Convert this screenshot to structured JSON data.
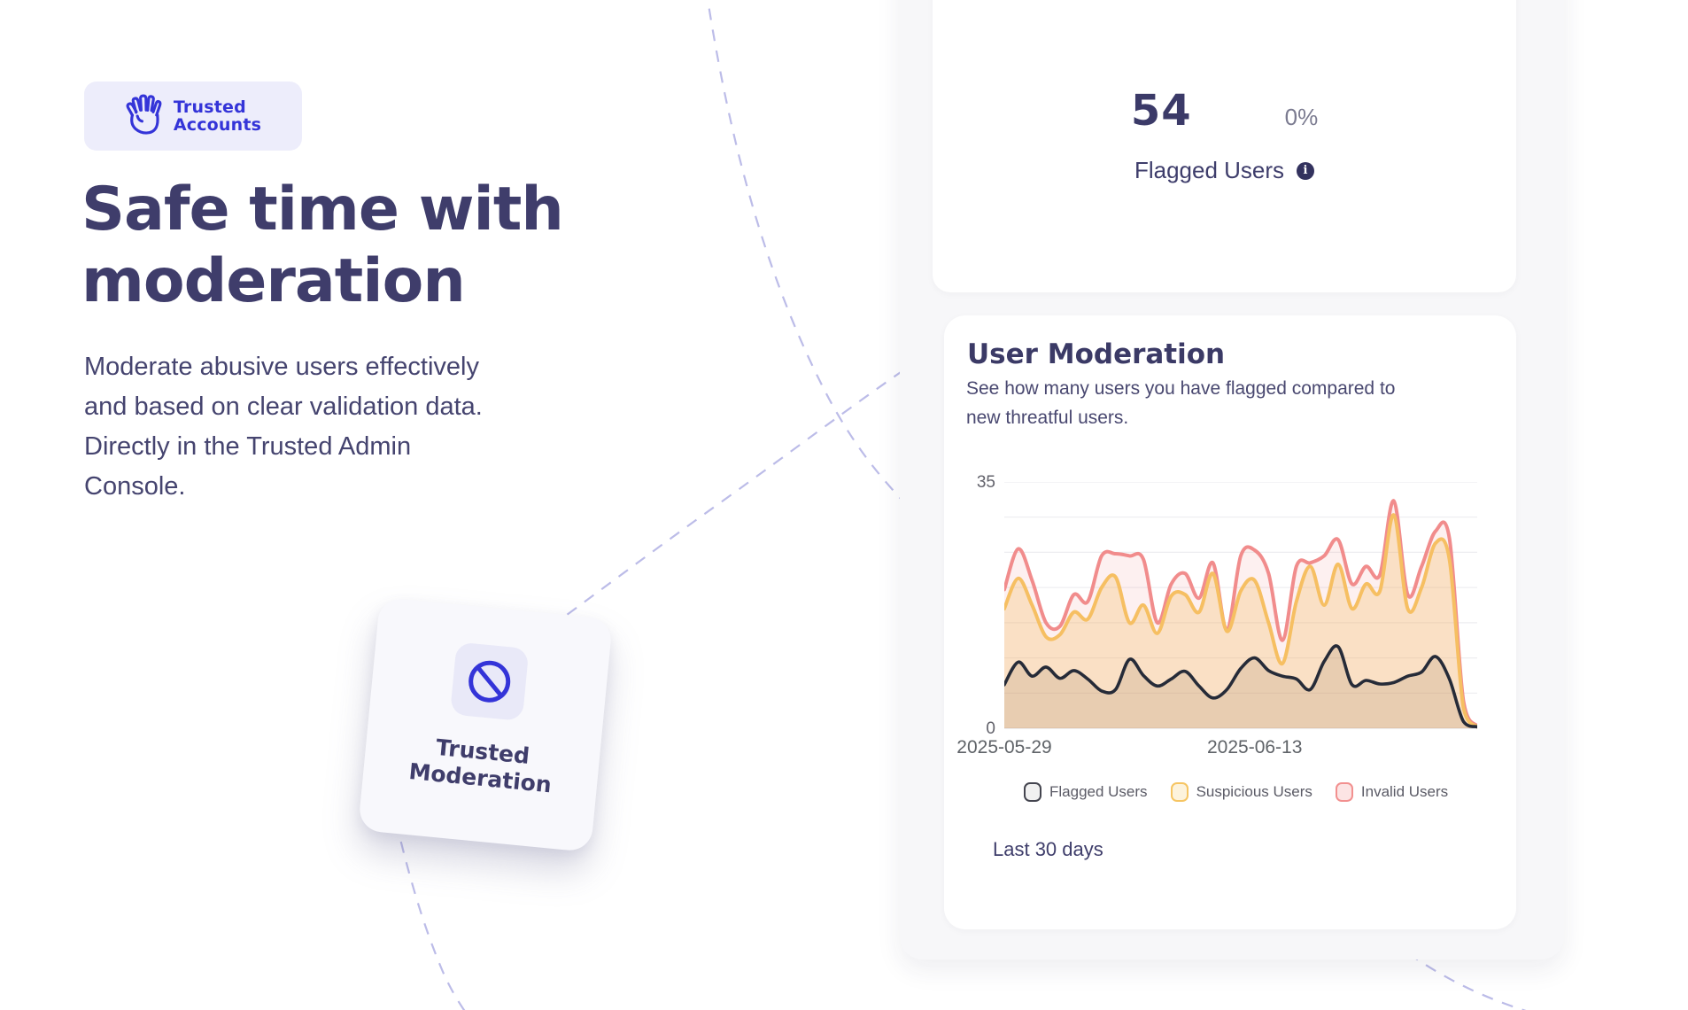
{
  "badge": {
    "icon": "vulcan-hand-icon",
    "line1": "Trusted",
    "line2": "Accounts"
  },
  "hero": {
    "title_lines": [
      "Safe time with",
      "moderation"
    ],
    "paragraph_lines": [
      "Moderate abusive users effectively",
      "and based on clear validation data.",
      "Directly in the Trusted Admin",
      "Console."
    ]
  },
  "moderation_tile": {
    "icon": "prohibition-icon",
    "title_lines": [
      "Trusted",
      "Moderation"
    ]
  },
  "stat_card": {
    "value": "54",
    "delta": "0%",
    "label": "Flagged Users",
    "info_icon": "info-icon"
  },
  "chart_card": {
    "title": "User Moderation",
    "description": "See how many users you have flagged compared to new threatful users.",
    "footer": "Last 30 days"
  },
  "colors": {
    "accent_blue": "#3434d8",
    "navy": "#3e3d6b",
    "panel_bg": "#f7f7f9",
    "dashed_decoration": "#bcbce8"
  },
  "chart_data": {
    "type": "area",
    "title": "User Moderation",
    "ylim": [
      0,
      35
    ],
    "grid": "horizontal gridlines every 5, no vertical gridlines",
    "y_ticks_shown": [
      "35",
      "0"
    ],
    "x_tick_labels": [
      {
        "label": "2025-05-29",
        "index": 0
      },
      {
        "label": "2025-06-13",
        "index": 18
      }
    ],
    "legend_position": "bottom",
    "n_points": 35,
    "series": [
      {
        "name": "Invalid Users",
        "color": "#f18c8c",
        "fill": "rgba(242,140,140,0.13)",
        "legend_stroke": "#f2908f",
        "legend_fill": "#fce4e4",
        "values": [
          19.7,
          25.5,
          21,
          15,
          14.5,
          19,
          18,
          24.5,
          24.8,
          24.5,
          24,
          15,
          20.5,
          22,
          18.5,
          23.5,
          14,
          24.5,
          25.3,
          22,
          12.5,
          23,
          23.5,
          24.5,
          26.8,
          20.5,
          23,
          21.8,
          32.3,
          19,
          23,
          28,
          27,
          4,
          0.3
        ]
      },
      {
        "name": "Suspicious Users",
        "color": "#f6bf62",
        "fill": "rgba(246,189,98,0.30)",
        "legend_stroke": "#f6c563",
        "legend_fill": "#fdf3dc",
        "values": [
          17,
          21.3,
          17.5,
          13,
          13.3,
          16.5,
          15.5,
          20,
          21.5,
          15,
          17.5,
          13.5,
          18.8,
          19,
          16.5,
          22,
          13.8,
          19.5,
          21,
          15,
          9.2,
          18,
          23,
          17.5,
          23.3,
          17,
          20.5,
          19.5,
          30.3,
          17,
          20,
          26.3,
          24,
          3,
          0.2
        ]
      },
      {
        "name": "Flagged Users",
        "color": "#262b38",
        "fill": "rgba(125,95,60,0.14)",
        "legend_stroke": "#44454f",
        "legend_fill": "#f1f1f1",
        "values": [
          6.2,
          9.4,
          7.4,
          8.7,
          7.1,
          8.2,
          7,
          5.3,
          5.5,
          9.8,
          7.5,
          6,
          7,
          8.1,
          6,
          4.3,
          5.5,
          8.5,
          10,
          8.2,
          7.4,
          7,
          5.5,
          9.5,
          11.6,
          6.2,
          6.8,
          6.3,
          6.5,
          7.4,
          8,
          10.2,
          7,
          1,
          0.2
        ]
      }
    ]
  }
}
